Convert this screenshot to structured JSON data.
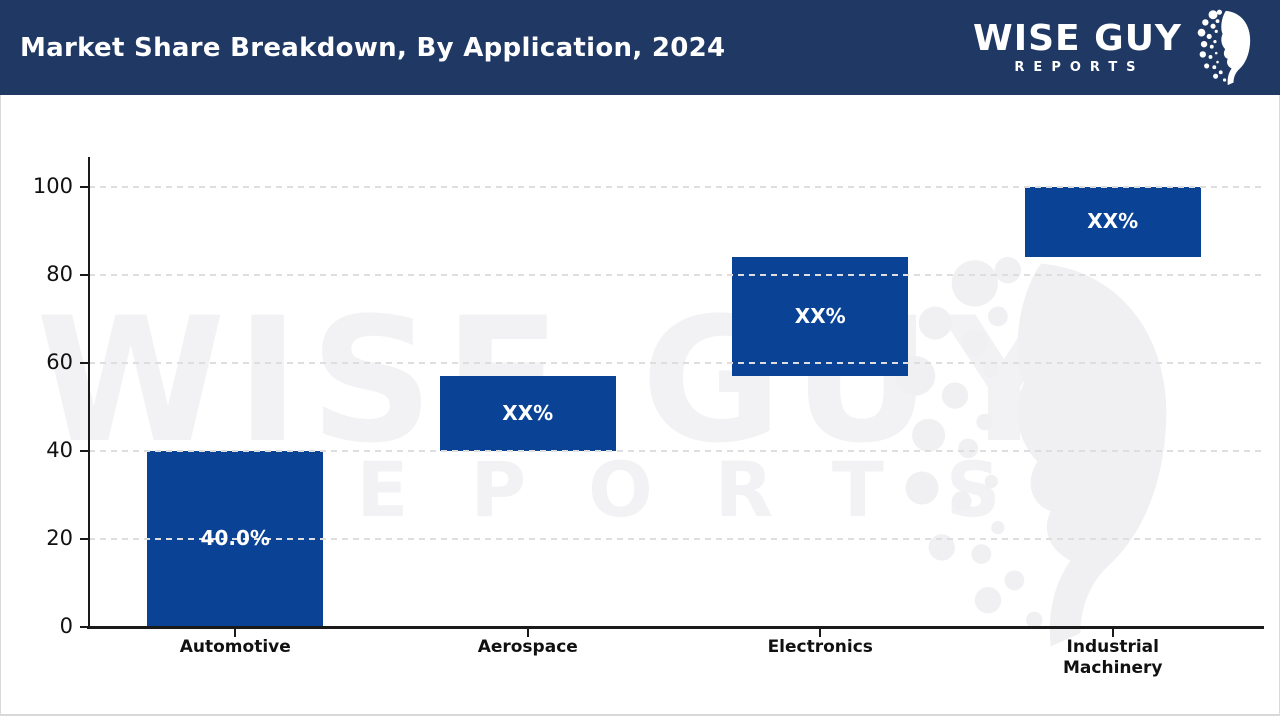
{
  "header": {
    "title": "Market Share Breakdown, By Application, 2024",
    "logo": {
      "line1": "WISE GUY",
      "line2": "REPORTS"
    }
  },
  "watermark": {
    "line1": "WISE GUY",
    "line2": "REPORTS"
  },
  "colors": {
    "header_bg": "#1f3864",
    "bar": "#0a4296",
    "bar_label": "#ffffff",
    "grid": "#dedede",
    "axis": "#1a1a1a",
    "text": "#111111",
    "watermark": "#f2f2f4",
    "frame_border": "#d9d9d9"
  },
  "chart_data": {
    "type": "bar",
    "subtype": "waterfall-floating-bars",
    "title": "Market Share Breakdown, By Application, 2024",
    "categories": [
      "Automotive",
      "Aerospace",
      "Electronics",
      "Industrial Machinery"
    ],
    "bars": [
      {
        "category": "Automotive",
        "start": 0,
        "end": 40,
        "segment_value": 40,
        "label": "40.0%"
      },
      {
        "category": "Aerospace",
        "start": 40,
        "end": 57,
        "segment_value": 17,
        "label": "XX%"
      },
      {
        "category": "Electronics",
        "start": 57,
        "end": 84,
        "segment_value": 27,
        "label": "XX%"
      },
      {
        "category": "Industrial Machinery",
        "start": 84,
        "end": 100,
        "segment_value": 16,
        "label": "XX%"
      }
    ],
    "ylim": [
      0,
      100
    ],
    "yticks": [
      0,
      20,
      40,
      60,
      80,
      100
    ],
    "xlabel": "",
    "ylabel": "",
    "grid": "horizontal-dashed-over-bars",
    "legend": "none"
  }
}
